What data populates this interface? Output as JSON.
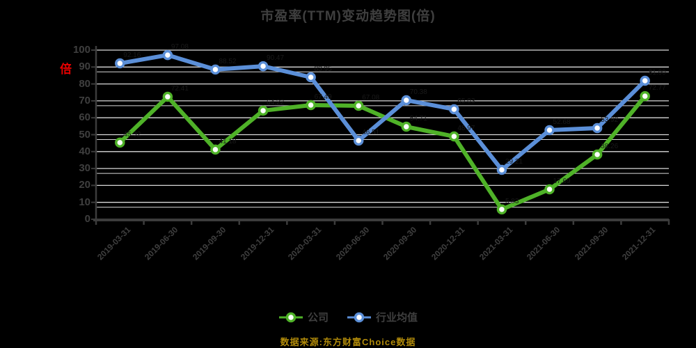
{
  "title": {
    "text": "市盈率(TTM)变动趋势图(倍)"
  },
  "y_axis": {
    "unit_label": "倍",
    "tick_labels": [
      "100",
      "90",
      "80",
      "70",
      "60",
      "50",
      "40",
      "30",
      "20",
      "10",
      "0"
    ],
    "min": 0,
    "max": 100,
    "step": 10
  },
  "legend": {
    "items": [
      {
        "label": "公司",
        "color": "#4fb228"
      },
      {
        "label": "行业均值",
        "color": "#5b8fd8"
      }
    ]
  },
  "source_note": {
    "text": "数据来源:东方财富Choice数据"
  },
  "colors": {
    "background": "#000000",
    "grid": "#d9d9d9",
    "axis": "#3c3c3c",
    "text": "#3f3f3f",
    "unit_red": "#e80000",
    "series_green": "#4fb228",
    "series_blue": "#5b8fd8",
    "marker_fill": "#ffffff",
    "data_label": "#1a1a1a",
    "source_gold": "#b08a0a"
  },
  "chart_data": {
    "type": "line",
    "title": "市盈率(TTM)变动趋势图(倍)",
    "xlabel": "",
    "ylabel": "倍",
    "ylim": [
      0,
      100
    ],
    "y_step": 10,
    "grid": true,
    "legend_position": "bottom",
    "point_labels": true,
    "x": [
      "2019-03-31",
      "2019-06-30",
      "2019-09-30",
      "2019-12-31",
      "2020-03-31",
      "2020-06-30",
      "2020-09-30",
      "2020-12-31",
      "2021-03-31",
      "2021-06-30",
      "2021-09-30",
      "2021-12-31"
    ],
    "series": [
      {
        "name": "公司",
        "color": "#4fb228",
        "values": [
          45.32,
          72.41,
          41.18,
          64.22,
          67.49,
          67.08,
          54.71,
          48.97,
          5.83,
          17.69,
          38.26,
          72.77
        ]
      },
      {
        "name": "行业均值",
        "color": "#5b8fd8",
        "values": [
          92.16,
          97.08,
          88.52,
          90.47,
          83.95,
          46.51,
          70.38,
          65.03,
          29.21,
          52.68,
          53.92,
          81.9
        ]
      }
    ]
  }
}
